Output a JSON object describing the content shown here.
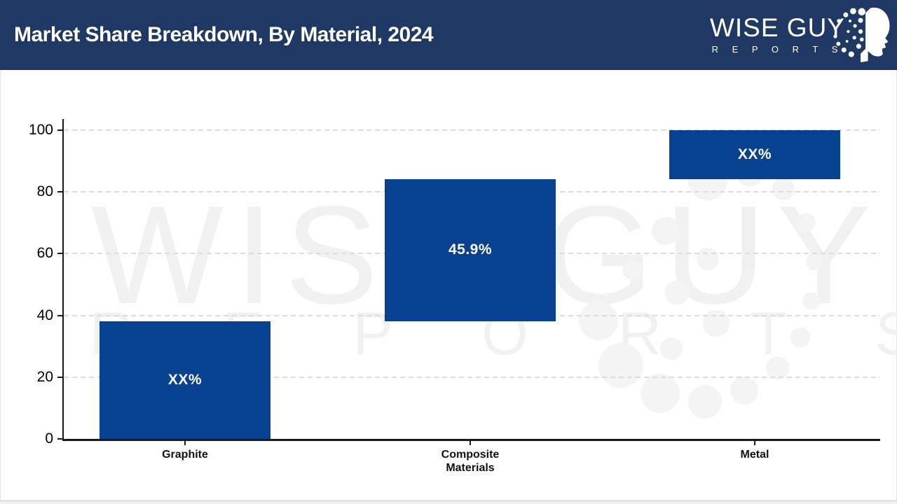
{
  "header": {
    "title": "Market Share Breakdown, By Material, 2024",
    "logo": {
      "wordmark": "WISE GUY",
      "subtitle": "R E P O R T S"
    }
  },
  "watermark": {
    "wordmark": "WISE GUY",
    "subtitle": "R E P O R T S"
  },
  "colors": {
    "header_bg": "#1f3864",
    "title_text": "#ffffff",
    "bar_fill": "#07418f",
    "bar_label_text": "#ffffff",
    "axis": "#1a1a1a",
    "tick_text": "#000000",
    "gridline": "#dcdcdc",
    "watermark": "#f1f1f1",
    "footer_line": "#c9c9c9",
    "footer_bg": "#f1f1f1"
  },
  "chart_data": {
    "type": "bar",
    "subtype": "waterfall",
    "title": "Market Share Breakdown, By Material, 2024",
    "xlabel": "",
    "ylabel": "",
    "categories": [
      "Graphite",
      "Composite\nMaterials",
      "Metal"
    ],
    "bars": [
      {
        "category": "Graphite",
        "start": 0,
        "end": 38.2,
        "value_label": "XX%"
      },
      {
        "category": "Composite\nMaterials",
        "start": 38.2,
        "end": 84.1,
        "value_label": "45.9%"
      },
      {
        "category": "Metal",
        "start": 84.1,
        "end": 100,
        "value_label": "XX%"
      }
    ],
    "yticks": [
      0,
      20,
      40,
      60,
      80,
      100
    ],
    "ylim": [
      0,
      103.5
    ],
    "grid": "horizontal-dashed",
    "legend": "none"
  }
}
